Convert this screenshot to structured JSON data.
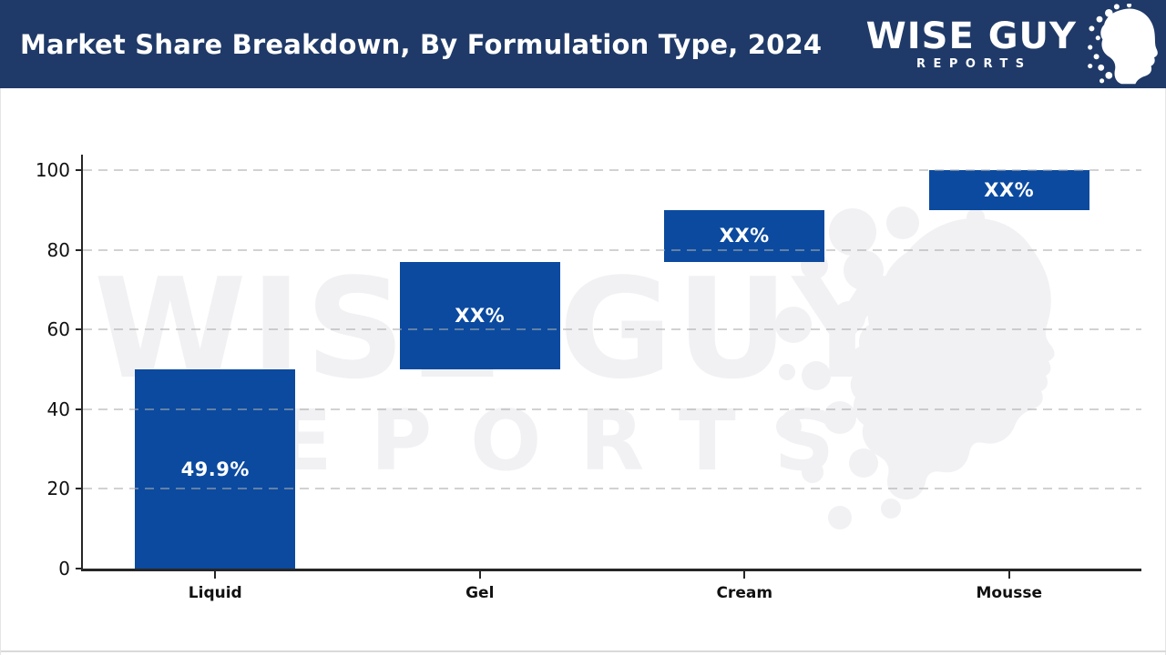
{
  "header": {
    "title": "Market Share Breakdown, By Formulation Type, 2024",
    "bg_color": "#1f3a68",
    "logo": {
      "line1": "WISE GUY",
      "line2": "REPORTS"
    }
  },
  "watermark": {
    "line1": "WISE GUY",
    "line2": "REPORTS"
  },
  "chart_data": {
    "type": "bar",
    "subtype": "floating-waterfall",
    "title": "Market Share Breakdown, By Formulation Type, 2024",
    "categories": [
      "Liquid",
      "Gel",
      "Cream",
      "Mousse"
    ],
    "bars": [
      {
        "category": "Liquid",
        "start": 0,
        "end": 49.9,
        "label": "49.9%"
      },
      {
        "category": "Gel",
        "start": 49.9,
        "end": 77,
        "label": "XX%"
      },
      {
        "category": "Cream",
        "start": 77,
        "end": 90,
        "label": "XX%"
      },
      {
        "category": "Mousse",
        "start": 90,
        "end": 100,
        "label": "XX%"
      }
    ],
    "xlabel": "",
    "ylabel": "",
    "yticks": [
      0,
      20,
      40,
      60,
      80,
      100
    ],
    "ylim": [
      0,
      104
    ],
    "grid": true,
    "grid_style": "dashed",
    "legend": "none",
    "bar_color": "#0b4a9f",
    "label_color": "#ffffff"
  }
}
